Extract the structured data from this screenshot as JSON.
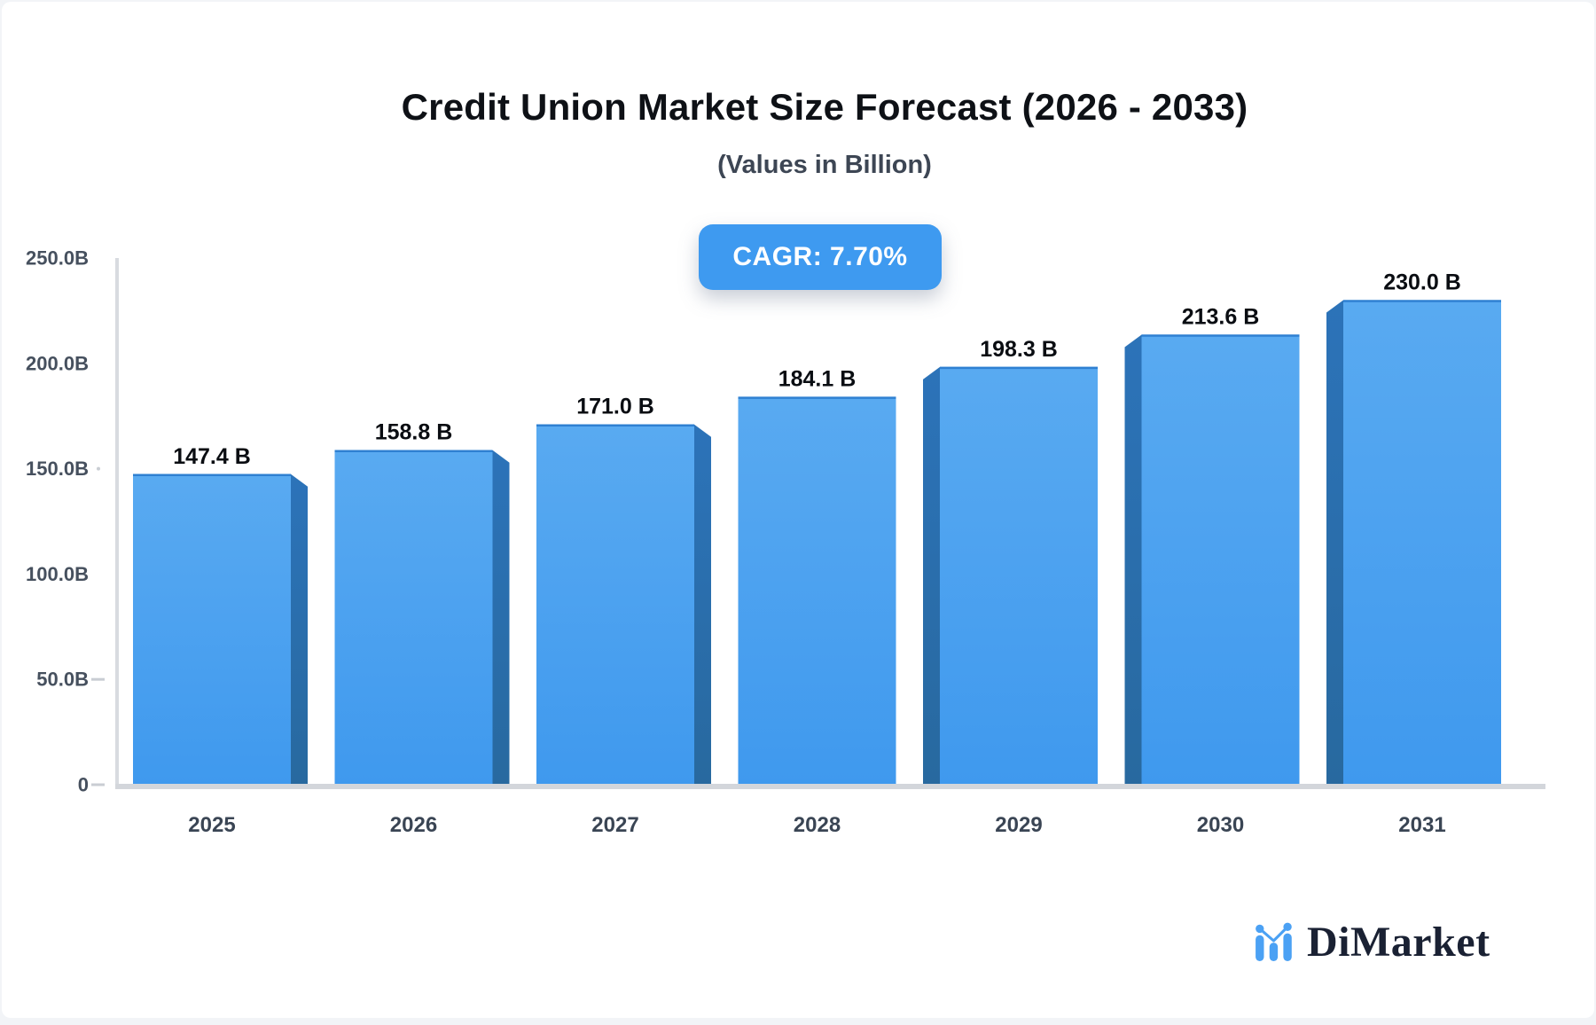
{
  "header": {
    "title": "Credit Union Market Size Forecast (2026 - 2033)",
    "subtitle": "(Values in Billion)"
  },
  "badge": {
    "label": "CAGR: 7.70%",
    "bg": "#3E9AF0",
    "text_color": "#FFFFFF"
  },
  "chart_data": {
    "type": "bar",
    "title": "Credit Union Market Size Forecast (2026 - 2033)",
    "subtitle": "(Values in Billion)",
    "annotation": "CAGR: 7.70%",
    "unit": "Billion",
    "categories": [
      "2025",
      "2026",
      "2027",
      "2028",
      "2029",
      "2030",
      "2031"
    ],
    "values": [
      147.4,
      158.8,
      171.0,
      184.1,
      198.3,
      213.6,
      230.0
    ],
    "value_labels": [
      "147.4 B",
      "158.8 B",
      "171.0 B",
      "184.1 B",
      "198.3 B",
      "213.6 B",
      "230.0 B"
    ],
    "ylim": [
      0,
      250
    ],
    "y_ticks": [
      {
        "value": 0,
        "label": "0"
      },
      {
        "value": 50,
        "label": "50.0B"
      },
      {
        "value": 100,
        "label": "100.0B"
      },
      {
        "value": 150,
        "label": "150.0B"
      },
      {
        "value": 200,
        "label": "200.0B"
      },
      {
        "value": 250,
        "label": "250.0B"
      }
    ],
    "grid": false,
    "legend": false,
    "colors": {
      "bar_face_top": "#59AAF1",
      "bar_face_bottom": "#3F99EE",
      "bar_top_edge": "#2F80D2",
      "bar_side": "#2C73B9",
      "bar_side_dark": "#28699F",
      "axis_line": "#D8DBE0",
      "baseline": "#D3D6DB",
      "tick_dash": "#C9CDD3",
      "y_label": "#46505E",
      "x_label": "#3A4554",
      "value_label": "#0A0D12"
    }
  },
  "logo": {
    "text": "DiMarket",
    "icon": "bar-chart-with-trend-icon",
    "icon_color": "#4BA1F4",
    "text_color": "#1A2133"
  }
}
